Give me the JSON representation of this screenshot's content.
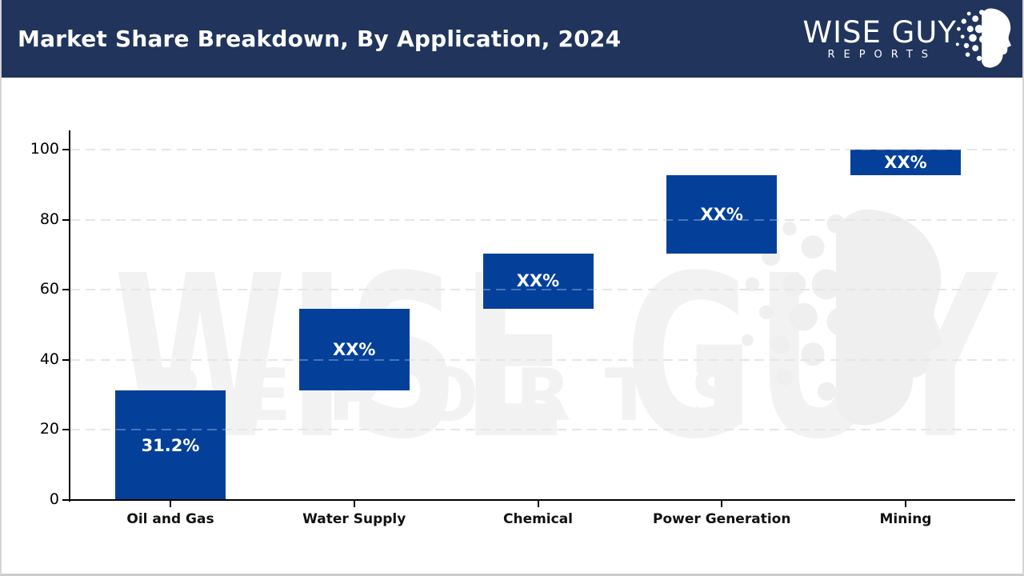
{
  "header": {
    "title": "Market Share Breakdown, By Application, 2024",
    "logo": {
      "brand_line1": "WISE GUY",
      "brand_line2": "REPORTS"
    }
  },
  "watermark": {
    "line1": "WISE GUY",
    "line2": "REPORTS"
  },
  "chart_data": {
    "type": "bar",
    "subtype": "waterfall",
    "title": "Market Share Breakdown, By Application, 2024",
    "categories": [
      "Oil and Gas",
      "Water Supply",
      "Chemical",
      "Power Generation",
      "Mining"
    ],
    "bars": [
      {
        "category": "Oil and Gas",
        "start": 0,
        "end": 31.2,
        "value": 31.2,
        "label": "31.2%"
      },
      {
        "category": "Water Supply",
        "start": 31.2,
        "end": 54.6,
        "value": 23.4,
        "label": "XX%"
      },
      {
        "category": "Chemical",
        "start": 54.6,
        "end": 70.3,
        "value": 15.7,
        "label": "XX%"
      },
      {
        "category": "Power Generation",
        "start": 70.3,
        "end": 92.7,
        "value": 22.4,
        "label": "XX%"
      },
      {
        "category": "Mining",
        "start": 92.7,
        "end": 100,
        "value": 7.3,
        "label": "XX%"
      }
    ],
    "xlabel": "",
    "ylabel": "",
    "ylim": [
      0,
      105
    ],
    "yticks": [
      0,
      20,
      40,
      60,
      80,
      100
    ],
    "grid": "horizontal-dashed",
    "legend": "none",
    "bar_color": "#04409a",
    "bar_label_color": "#ffffff"
  },
  "colors": {
    "header_bg": "#20345c",
    "bar": "#04409a",
    "grid": "#dcdcdc",
    "axis": "#000000",
    "watermark": "#f0f0f0",
    "page_border": "#d4d4d4"
  }
}
